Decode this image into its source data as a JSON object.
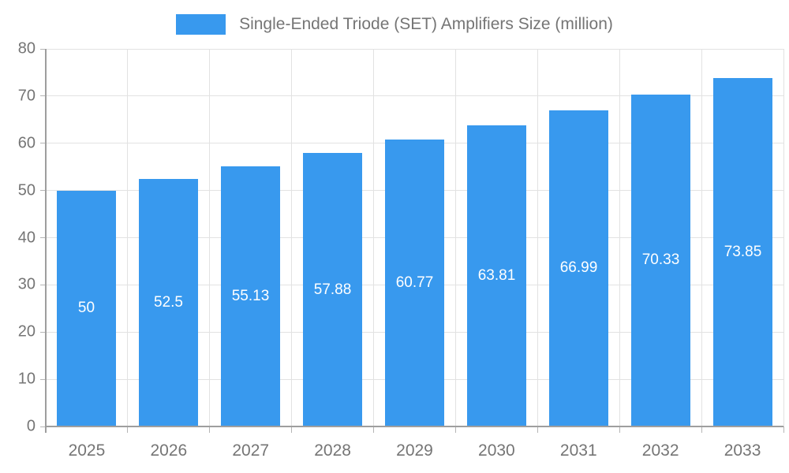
{
  "legend": {
    "label": "Single-Ended Triode (SET) Amplifiers Size (million)"
  },
  "colors": {
    "bar": "#3899ee",
    "grid": "#e2e2e2",
    "axis": "#9e9e9e",
    "tick": "#b5b5b5",
    "axis_label": "#757575",
    "value_label": "#ffffff",
    "background": "#ffffff"
  },
  "chart_data": {
    "type": "bar",
    "title": "Single-Ended Triode (SET) Amplifiers Size (million)",
    "categories": [
      "2025",
      "2026",
      "2027",
      "2028",
      "2029",
      "2030",
      "2031",
      "2032",
      "2033"
    ],
    "values": [
      50,
      52.5,
      55.13,
      57.88,
      60.77,
      63.81,
      66.99,
      70.33,
      73.85
    ],
    "value_labels": [
      "50",
      "52.5",
      "55.13",
      "57.88",
      "60.77",
      "63.81",
      "66.99",
      "70.33",
      "73.85"
    ],
    "xlabel": "",
    "ylabel": "",
    "ylim": [
      0,
      80
    ],
    "ytick_step": 10,
    "ytick_labels": [
      "0",
      "10",
      "20",
      "30",
      "40",
      "50",
      "60",
      "70",
      "80"
    ],
    "grid": true,
    "legend_position": "top-center"
  }
}
